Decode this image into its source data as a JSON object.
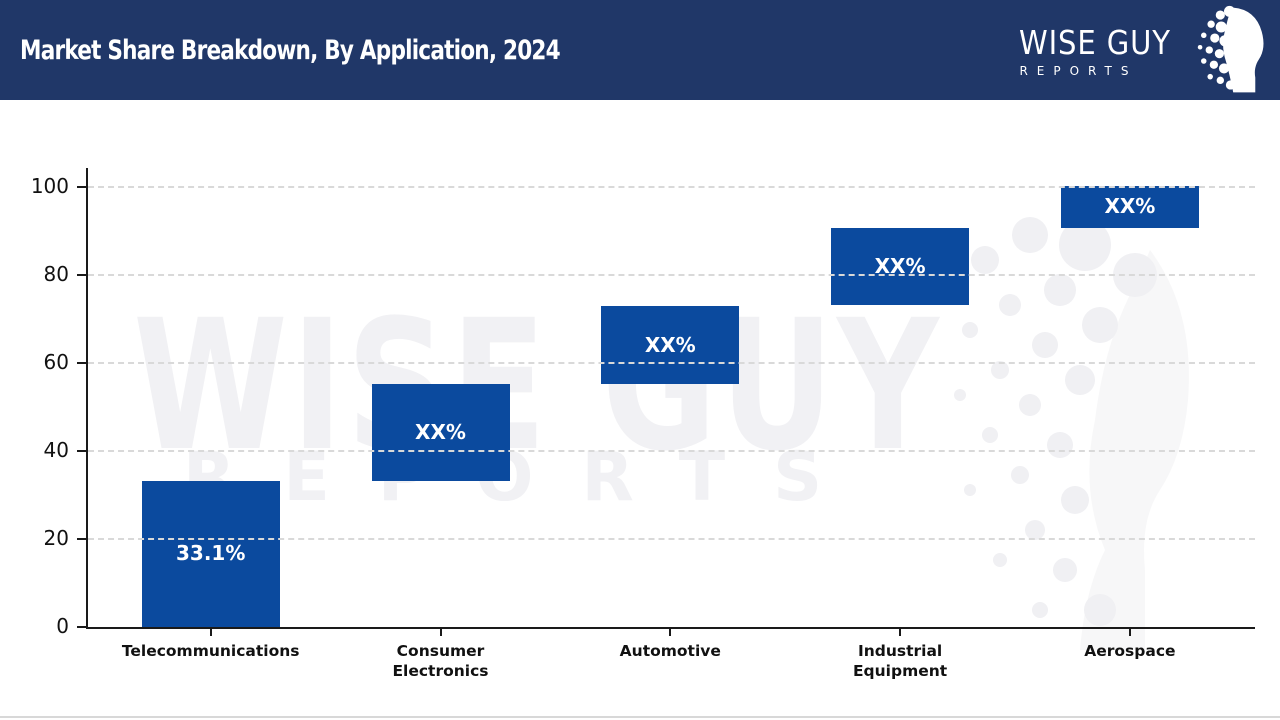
{
  "header": {
    "title": "Market Share Breakdown, By Application, 2024",
    "logo": {
      "name": "WISE GUY",
      "sub": "REPORTS"
    }
  },
  "watermark": {
    "line1": "WISE GUY",
    "line2": "REPORTS"
  },
  "chart_data": {
    "type": "bar",
    "subtype": "waterfall",
    "title": "Market Share Breakdown, By Application, 2024",
    "categories": [
      "Telecommunications",
      "Consumer Electronics",
      "Automotive",
      "Industrial Equipment",
      "Aerospace"
    ],
    "segments": [
      {
        "category": "Telecommunications",
        "start": 0,
        "end": 33.1,
        "label": "33.1%"
      },
      {
        "category": "Consumer Electronics",
        "start": 33.1,
        "end": 55.2,
        "label": "XX%"
      },
      {
        "category": "Automotive",
        "start": 55.2,
        "end": 73.0,
        "label": "XX%"
      },
      {
        "category": "Industrial Equipment",
        "start": 73.0,
        "end": 90.6,
        "label": "XX%"
      },
      {
        "category": "Aerospace",
        "start": 90.6,
        "end": 100.1,
        "label": "XX%"
      }
    ],
    "yticks": [
      0,
      20,
      40,
      60,
      80,
      100
    ],
    "ylim": [
      0,
      104
    ],
    "xlabel": "",
    "ylabel": "",
    "grid": "horizontal-dashed",
    "legend": "none"
  },
  "colors": {
    "header_bg": "#203768",
    "bar": "#0b4a9e",
    "bar_label": "#ffffff",
    "axis": "#1a1a1a",
    "grid": "#d9d9d9",
    "tick_text": "#111111",
    "watermark": "#f1f1f4"
  }
}
